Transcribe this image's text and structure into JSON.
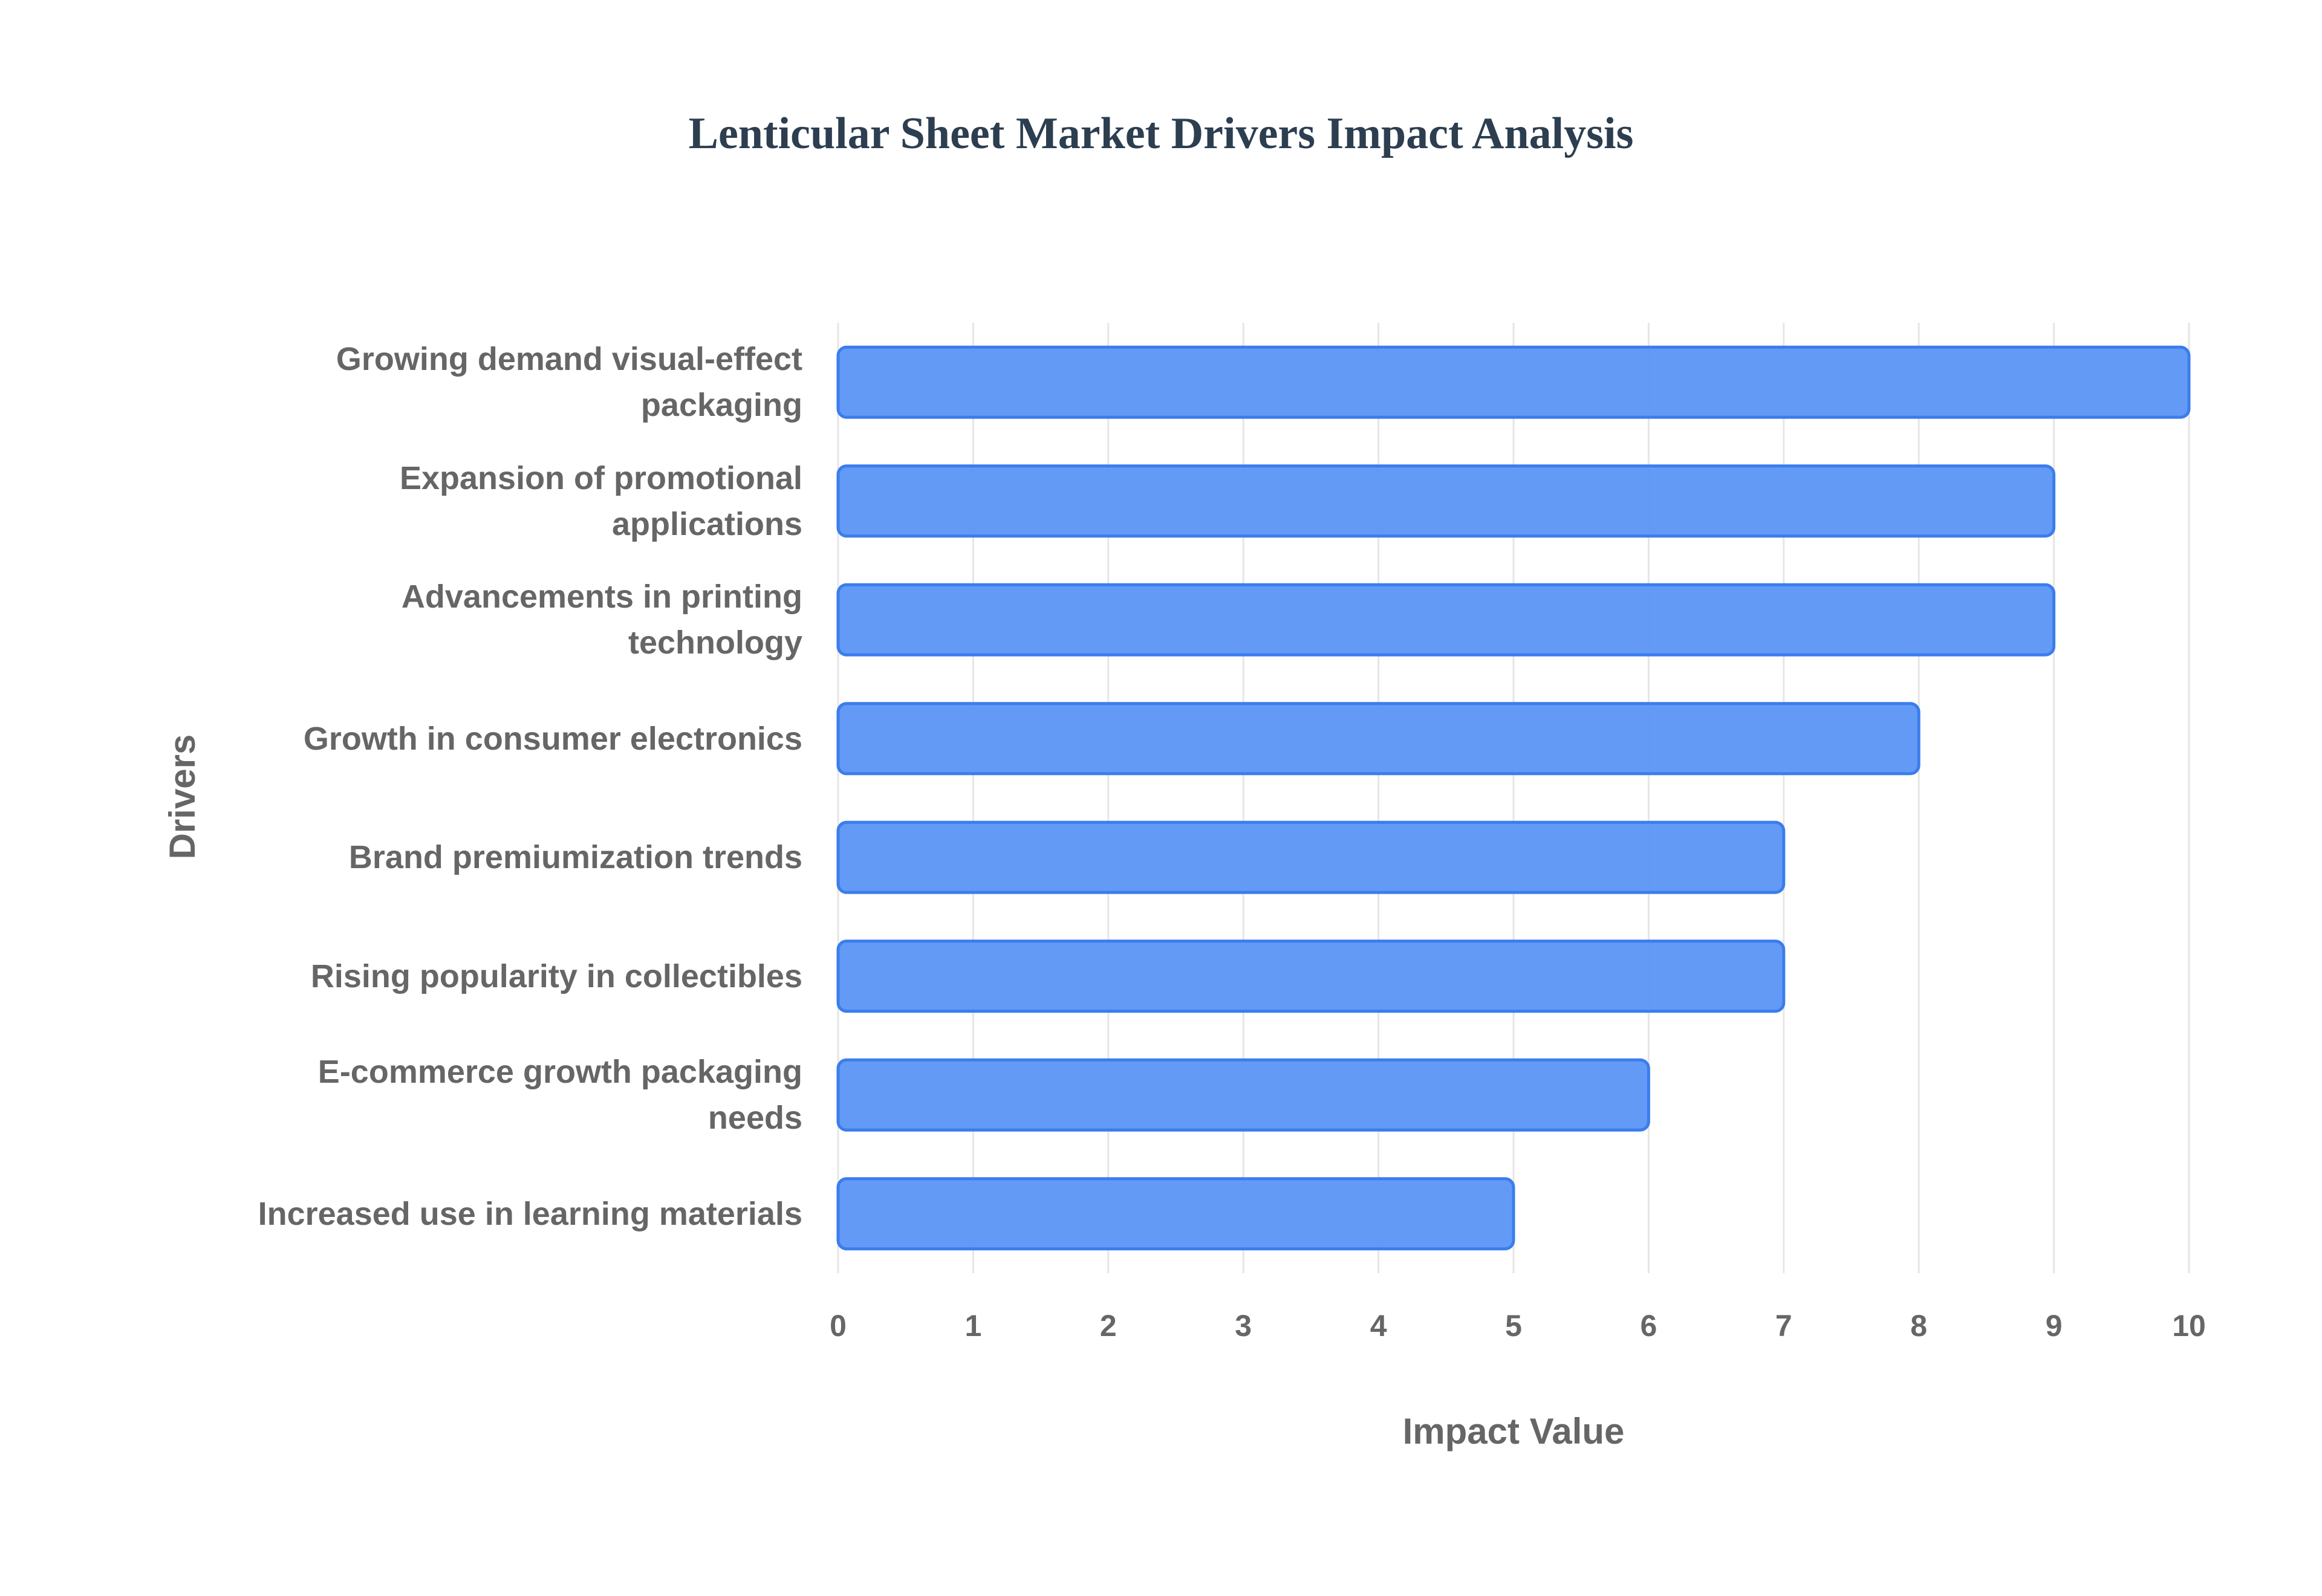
{
  "chart_data": {
    "type": "bar",
    "orientation": "horizontal",
    "title": "Lenticular Sheet Market Drivers Impact Analysis",
    "x_axis_label": "Impact Value",
    "y_axis_label": "Drivers",
    "categories": [
      "Growing demand visual-effect packaging",
      "Expansion of promotional applications",
      "Advancements in printing technology",
      "Growth in consumer electronics",
      "Brand premiumization trends",
      "Rising popularity in collectibles",
      "E-commerce growth packaging needs",
      "Increased use in learning materials"
    ],
    "values": [
      10,
      9,
      9,
      8,
      7,
      7,
      6,
      5
    ],
    "color": "#5b95f5",
    "xlim": [
      0,
      10
    ],
    "xticks": [
      0,
      1,
      2,
      3,
      4,
      5,
      6,
      7,
      8,
      9,
      10
    ],
    "grid": true
  }
}
